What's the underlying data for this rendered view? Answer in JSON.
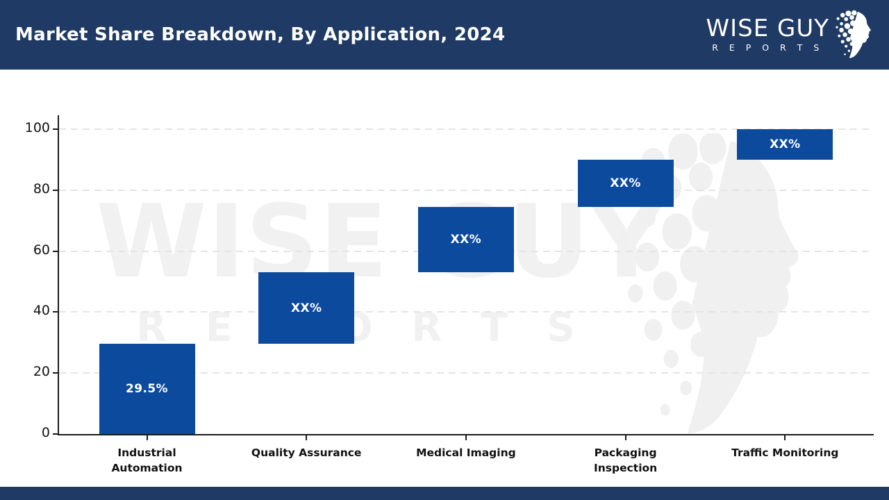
{
  "brand": {
    "name": "WISE GUY",
    "subtitle": "R E P O R T S"
  },
  "watermark": {
    "line1": "WISE GUY",
    "line2": "R E P O R T S"
  },
  "theme": {
    "header_bg": "#1f3a64",
    "footer_bg": "#1f3a64",
    "title_color": "#ffffff",
    "bar_color": "#0c4a9e",
    "bar_label_color": "#ffffff",
    "axis_color": "#1a1a1a",
    "text_color": "#111111",
    "grid_color": "#e4e4e4",
    "watermark_color": "#f1f1f1"
  },
  "chart_data": {
    "type": "bar",
    "subtype": "waterfall",
    "title": "Market Share Breakdown, By Application, 2024",
    "xlabel": "",
    "ylabel": "",
    "ylim": [
      0,
      105
    ],
    "y_ticks": [
      0,
      20,
      40,
      60,
      80,
      100
    ],
    "grid": "horizontal-dashed",
    "legend": "none",
    "categories": [
      "Industrial Automation",
      "Quality Assurance",
      "Medical Imaging",
      "Packaging Inspection",
      "Traffic Monitoring"
    ],
    "category_label_lines": [
      [
        "Industrial",
        "Automation"
      ],
      [
        "Quality Assurance"
      ],
      [
        "Medical Imaging"
      ],
      [
        "Packaging",
        "Inspection"
      ],
      [
        "Traffic Monitoring"
      ]
    ],
    "segments": [
      {
        "category": "Industrial Automation",
        "start": 0,
        "end": 29.5,
        "value": 29.5,
        "label": "29.5%"
      },
      {
        "category": "Quality Assurance",
        "start": 29.5,
        "end": 53.0,
        "value": 23.5,
        "label": "XX%"
      },
      {
        "category": "Medical Imaging",
        "start": 53.0,
        "end": 74.5,
        "value": 21.5,
        "label": "XX%"
      },
      {
        "category": "Packaging Inspection",
        "start": 74.5,
        "end": 90.0,
        "value": 15.5,
        "label": "XX%"
      },
      {
        "category": "Traffic Monitoring",
        "start": 90.0,
        "end": 100.0,
        "value": 10.0,
        "label": "XX%"
      }
    ]
  }
}
